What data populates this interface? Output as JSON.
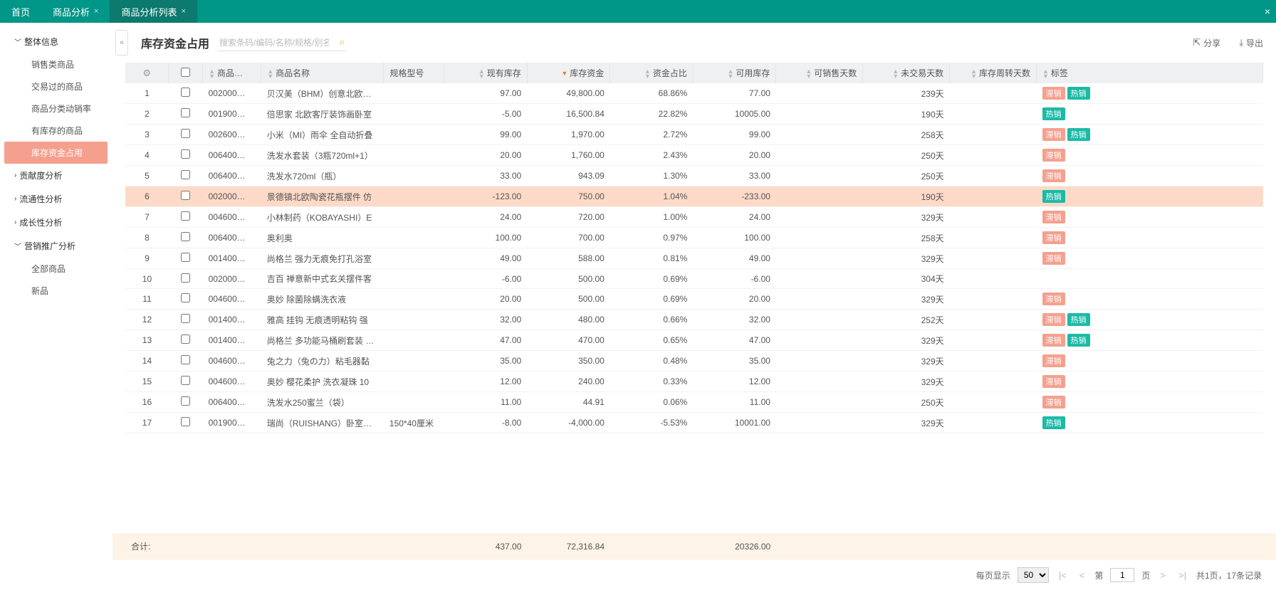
{
  "tabs": [
    {
      "label": "首页",
      "closable": false,
      "active": false
    },
    {
      "label": "商品分析",
      "closable": true,
      "active": false
    },
    {
      "label": "商品分析列表",
      "closable": true,
      "active": true
    }
  ],
  "sidebar": {
    "groups": [
      {
        "label": "整体信息",
        "open": true,
        "items": [
          {
            "label": "销售类商品"
          },
          {
            "label": "交易过的商品"
          },
          {
            "label": "商品分类动销率"
          },
          {
            "label": "有库存的商品"
          },
          {
            "label": "库存资金占用",
            "active": true
          }
        ]
      },
      {
        "label": "贡献度分析",
        "open": false,
        "items": []
      },
      {
        "label": "流通性分析",
        "open": false,
        "items": []
      },
      {
        "label": "成长性分析",
        "open": false,
        "items": []
      },
      {
        "label": "营销推广分析",
        "open": true,
        "items": [
          {
            "label": "全部商品"
          },
          {
            "label": "新品"
          }
        ]
      }
    ]
  },
  "page": {
    "title": "库存资金占用",
    "searchPlaceholder": "搜索条码/编码/名称/规格/别名",
    "shareLabel": "分享",
    "exportLabel": "导出"
  },
  "columns": {
    "idx": "",
    "code": "商品…",
    "name": "商品名称",
    "spec": "规格型号",
    "stock": "现有库存",
    "fund": "库存资金",
    "ratio": "资金占比",
    "avail": "可用库存",
    "saleDays": "可销售天数",
    "noTxnDays": "未交易天数",
    "turnDays": "库存周转天数",
    "tags": "标签"
  },
  "rows": [
    {
      "idx": 1,
      "code": "002000…",
      "name": "贝汉美（BHM）创意北欧…",
      "spec": "",
      "stock": "97.00",
      "fund": "49,800.00",
      "ratio": "68.86%",
      "avail": "77.00",
      "saleDays": "",
      "noTxnDays": "239天",
      "turnDays": "",
      "tags": [
        "滞销",
        "热销"
      ]
    },
    {
      "idx": 2,
      "code": "001900…",
      "name": "倍思家 北欧客厅装饰画卧室",
      "spec": "",
      "stock": "-5.00",
      "fund": "16,500.84",
      "ratio": "22.82%",
      "avail": "10005.00",
      "saleDays": "",
      "noTxnDays": "190天",
      "turnDays": "",
      "tags": [
        "热销"
      ]
    },
    {
      "idx": 3,
      "code": "002600…",
      "name": "小米（MI）雨伞 全自动折叠",
      "spec": "",
      "stock": "99.00",
      "fund": "1,970.00",
      "ratio": "2.72%",
      "avail": "99.00",
      "saleDays": "",
      "noTxnDays": "258天",
      "turnDays": "",
      "tags": [
        "滞销",
        "热销"
      ]
    },
    {
      "idx": 4,
      "code": "006400…",
      "name": "洗发水套装（3瓶720ml+1）",
      "spec": "",
      "stock": "20.00",
      "fund": "1,760.00",
      "ratio": "2.43%",
      "avail": "20.00",
      "saleDays": "",
      "noTxnDays": "250天",
      "turnDays": "",
      "tags": [
        "滞销"
      ]
    },
    {
      "idx": 5,
      "code": "006400…",
      "name": "洗发水720ml（瓶）",
      "spec": "",
      "stock": "33.00",
      "fund": "943.09",
      "ratio": "1.30%",
      "avail": "33.00",
      "saleDays": "",
      "noTxnDays": "250天",
      "turnDays": "",
      "tags": [
        "滞销"
      ]
    },
    {
      "idx": 6,
      "code": "002000…",
      "name": "景德镇北欧陶瓷花瓶摆件 仿",
      "spec": "",
      "stock": "-123.00",
      "fund": "750.00",
      "ratio": "1.04%",
      "avail": "-233.00",
      "saleDays": "",
      "noTxnDays": "190天",
      "turnDays": "",
      "tags": [
        "热销"
      ],
      "highlight": true
    },
    {
      "idx": 7,
      "code": "004600…",
      "name": "小林制药（KOBAYASHI）E",
      "spec": "",
      "stock": "24.00",
      "fund": "720.00",
      "ratio": "1.00%",
      "avail": "24.00",
      "saleDays": "",
      "noTxnDays": "329天",
      "turnDays": "",
      "tags": [
        "滞销"
      ]
    },
    {
      "idx": 8,
      "code": "006400…",
      "name": "奥利奥",
      "spec": "",
      "stock": "100.00",
      "fund": "700.00",
      "ratio": "0.97%",
      "avail": "100.00",
      "saleDays": "",
      "noTxnDays": "258天",
      "turnDays": "",
      "tags": [
        "滞销"
      ]
    },
    {
      "idx": 9,
      "code": "001400…",
      "name": "尚格兰 强力无痕免打孔浴室",
      "spec": "",
      "stock": "49.00",
      "fund": "588.00",
      "ratio": "0.81%",
      "avail": "49.00",
      "saleDays": "",
      "noTxnDays": "329天",
      "turnDays": "",
      "tags": [
        "滞销"
      ]
    },
    {
      "idx": 10,
      "code": "002000…",
      "name": "吉百 禅意新中式玄关摆件客",
      "spec": "",
      "stock": "-6.00",
      "fund": "500.00",
      "ratio": "0.69%",
      "avail": "-6.00",
      "saleDays": "",
      "noTxnDays": "304天",
      "turnDays": "",
      "tags": []
    },
    {
      "idx": 11,
      "code": "004600…",
      "name": "奥妙 除菌除螨洗衣液",
      "spec": "",
      "stock": "20.00",
      "fund": "500.00",
      "ratio": "0.69%",
      "avail": "20.00",
      "saleDays": "",
      "noTxnDays": "329天",
      "turnDays": "",
      "tags": [
        "滞销"
      ]
    },
    {
      "idx": 12,
      "code": "001400…",
      "name": "雅高 挂钩 无痕透明粘钩 强",
      "spec": "",
      "stock": "32.00",
      "fund": "480.00",
      "ratio": "0.66%",
      "avail": "32.00",
      "saleDays": "",
      "noTxnDays": "252天",
      "turnDays": "",
      "tags": [
        "滞销",
        "热销"
      ]
    },
    {
      "idx": 13,
      "code": "001400…",
      "name": "尚格兰 多功能马桶刷套装 …",
      "spec": "",
      "stock": "47.00",
      "fund": "470.00",
      "ratio": "0.65%",
      "avail": "47.00",
      "saleDays": "",
      "noTxnDays": "329天",
      "turnDays": "",
      "tags": [
        "滞销",
        "热销"
      ]
    },
    {
      "idx": 14,
      "code": "004600…",
      "name": "兔之力（兔の力）粘毛器黏",
      "spec": "",
      "stock": "35.00",
      "fund": "350.00",
      "ratio": "0.48%",
      "avail": "35.00",
      "saleDays": "",
      "noTxnDays": "329天",
      "turnDays": "",
      "tags": [
        "滞销"
      ]
    },
    {
      "idx": 15,
      "code": "004600…",
      "name": "奥妙 樱花柔护 洗衣凝珠 10",
      "spec": "",
      "stock": "12.00",
      "fund": "240.00",
      "ratio": "0.33%",
      "avail": "12.00",
      "saleDays": "",
      "noTxnDays": "329天",
      "turnDays": "",
      "tags": [
        "滞销"
      ]
    },
    {
      "idx": 16,
      "code": "006400…",
      "name": "洗发水250蜜兰（袋）",
      "spec": "",
      "stock": "11.00",
      "fund": "44.91",
      "ratio": "0.06%",
      "avail": "11.00",
      "saleDays": "",
      "noTxnDays": "250天",
      "turnDays": "",
      "tags": [
        "滞销"
      ]
    },
    {
      "idx": 17,
      "code": "001900…",
      "name": "瑞尚（RUISHANG）卧室…",
      "spec": "150*40厘米",
      "stock": "-8.00",
      "fund": "-4,000.00",
      "ratio": "-5.53%",
      "avail": "10001.00",
      "saleDays": "",
      "noTxnDays": "329天",
      "turnDays": "",
      "tags": [
        "热销"
      ]
    }
  ],
  "totals": {
    "label": "合计:",
    "stock": "437.00",
    "fund": "72,316.84",
    "avail": "20326.00"
  },
  "tag_labels": {
    "slow": "滞销",
    "hot": "热销"
  },
  "pager": {
    "perPageLabel": "每页显示",
    "perPage": "50",
    "pageWord1": "第",
    "page": "1",
    "pageWord2": "页",
    "summary": "共1页，17条记录"
  }
}
